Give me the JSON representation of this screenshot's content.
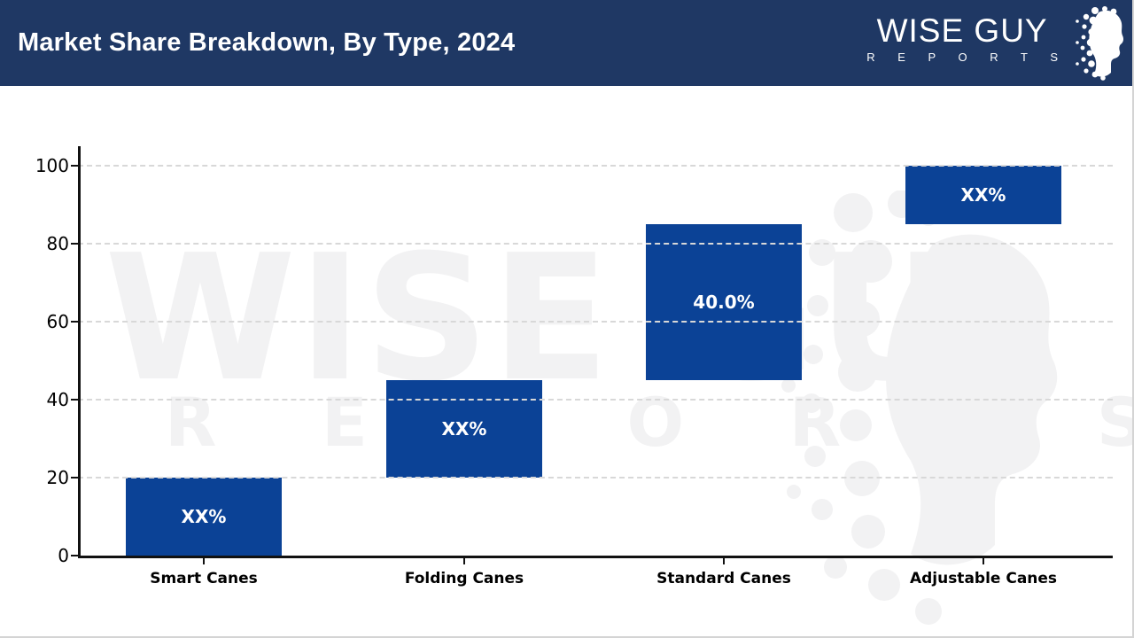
{
  "header": {
    "title": "Market Share Breakdown, By Type, 2024",
    "logo": {
      "name": "WISE GUY",
      "subtitle": "R E P O R T S"
    }
  },
  "watermark": {
    "line1": "WISE GU",
    "line2": "R E P O R T S"
  },
  "chart_data": {
    "type": "bar",
    "subtype": "waterfall",
    "title": "Market Share Breakdown, By Type, 2024",
    "categories": [
      "Smart Canes",
      "Folding Canes",
      "Standard Canes",
      "Adjustable Canes"
    ],
    "segments": [
      {
        "category": "Smart Canes",
        "start": 0,
        "end": 20,
        "value_label": "XX%"
      },
      {
        "category": "Folding Canes",
        "start": 20,
        "end": 45,
        "value_label": "XX%"
      },
      {
        "category": "Standard Canes",
        "start": 45,
        "end": 85,
        "value_label": "40.0%"
      },
      {
        "category": "Adjustable Canes",
        "start": 85,
        "end": 100,
        "value_label": "XX%"
      }
    ],
    "xlabel": "",
    "ylabel": "",
    "yticks": [
      0,
      20,
      40,
      60,
      80,
      100
    ],
    "ylim": [
      0,
      105
    ],
    "grid": true,
    "grid_style": "dashed",
    "grid_over_bars": true,
    "legend": "none",
    "bar_color": "#0b4296",
    "bar_label_color": "#ffffff"
  },
  "colors": {
    "header_bg": "#1f3864",
    "bar": "#0b4296",
    "watermark": "#f2f2f3",
    "gridline": "#d8d8d8",
    "axis": "#111111",
    "frame_line": "#d4d4d4"
  }
}
